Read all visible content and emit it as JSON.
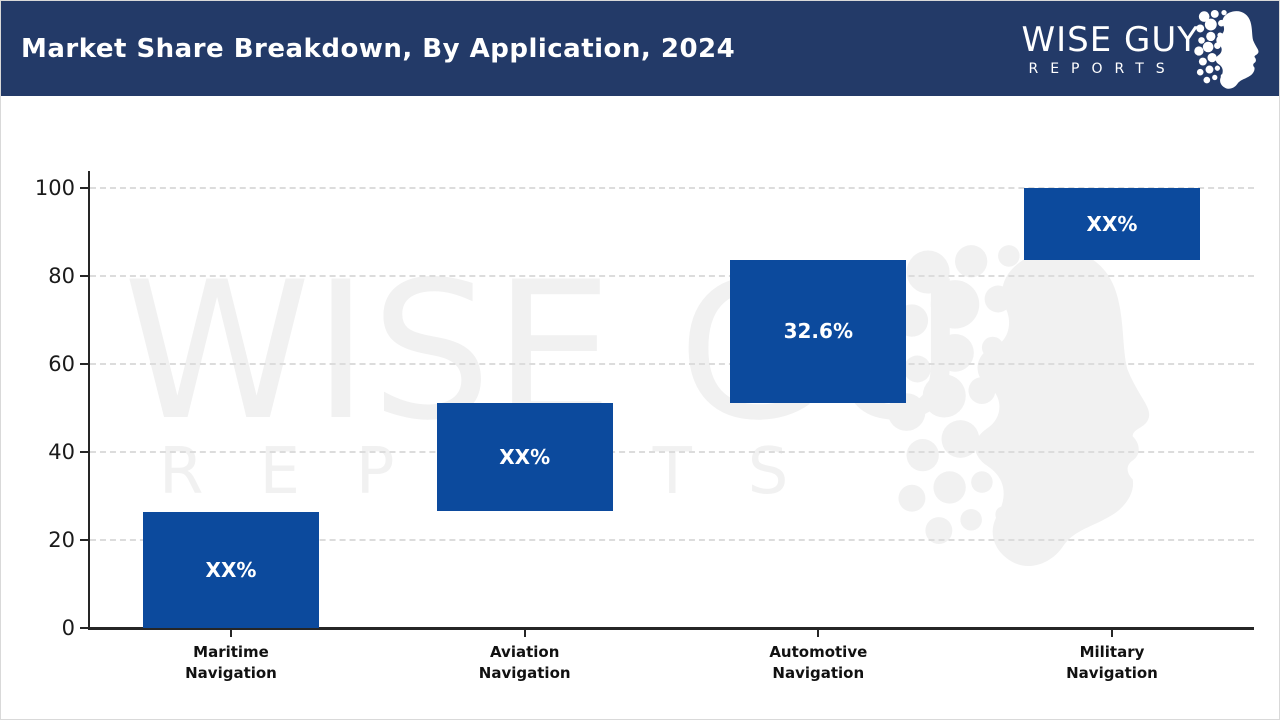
{
  "header": {
    "title": "Market Share Breakdown, By Application, 2024",
    "bg_color": "#233a68",
    "logo": {
      "line1": "WISE GUY",
      "line2": "REPORTS"
    }
  },
  "watermark": {
    "line1": "WISE GU",
    "line2": "REPORTS"
  },
  "chart_data": {
    "type": "bar",
    "variant": "waterfall",
    "title": "Market Share Breakdown, By Application, 2024",
    "categories": [
      "Maritime Navigation",
      "Aviation Navigation",
      "Automotive Navigation",
      "Military Navigation"
    ],
    "category_label_lines": [
      [
        "Maritime",
        "Navigation"
      ],
      [
        "Aviation",
        "Navigation"
      ],
      [
        "Automotive",
        "Navigation"
      ],
      [
        "Military",
        "Navigation"
      ]
    ],
    "segments": [
      {
        "category": "Maritime Navigation",
        "start": 0,
        "end": 26.3,
        "label": "XX%"
      },
      {
        "category": "Aviation Navigation",
        "start": 26.7,
        "end": 51.1,
        "label": "XX%"
      },
      {
        "category": "Automotive Navigation",
        "start": 51.1,
        "end": 83.7,
        "label": "32.6%"
      },
      {
        "category": "Military Navigation",
        "start": 83.7,
        "end": 100,
        "label": "XX%"
      }
    ],
    "xlabel": "",
    "ylabel": "",
    "ylim": [
      0,
      100
    ],
    "yticks": [
      0,
      20,
      40,
      60,
      80,
      100
    ],
    "grid": "horizontal-dashed",
    "legend": null,
    "bar_color": "#0c4a9d",
    "bar_label_color": "#ffffff",
    "axis_color": "#262626",
    "grid_color": "#dcdcdc",
    "tick_label_color": "#1a1a1a"
  }
}
